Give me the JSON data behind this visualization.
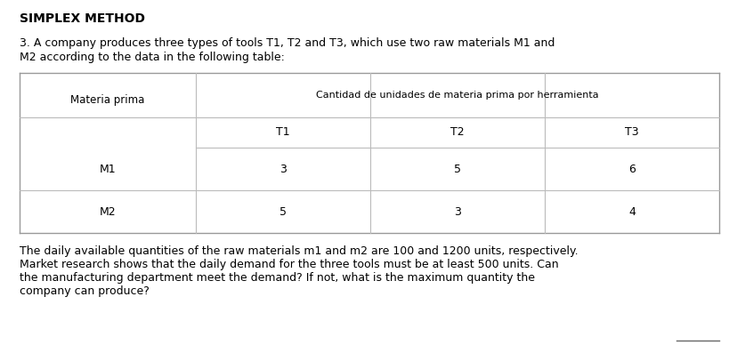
{
  "title": "SIMPLEX METHOD",
  "problem_text_line1": "3. A company produces three types of tools T1, T2 and T3, which use two raw materials M1 and",
  "problem_text_line2": "M2 according to the data in the following table:",
  "table_header_col0": "Materia prima",
  "table_header_span": "Cantidad de unidades de materia prima por herramienta",
  "table_subheaders": [
    "T1",
    "T2",
    "T3"
  ],
  "table_row_labels": [
    "M1",
    "M2"
  ],
  "table_data": [
    [
      3,
      5,
      6
    ],
    [
      5,
      3,
      4
    ]
  ],
  "footer_text_line1": "The daily available quantities of the raw materials m1 and m2 are 100 and 1200 units, respectively.",
  "footer_text_line2": "Market research shows that the daily demand for the three tools must be at least 500 units. Can",
  "footer_text_line3": "the manufacturing department meet the demand? If not, what is the maximum quantity the",
  "footer_text_line4": "company can produce?",
  "background_color": "#ffffff",
  "text_color": "#000000",
  "table_border_color": "#999999",
  "table_inner_line_color": "#bbbbbb",
  "font_size_title": 10,
  "font_size_body": 9.0,
  "font_size_table_header": 8.5,
  "font_size_table_data": 9.0
}
